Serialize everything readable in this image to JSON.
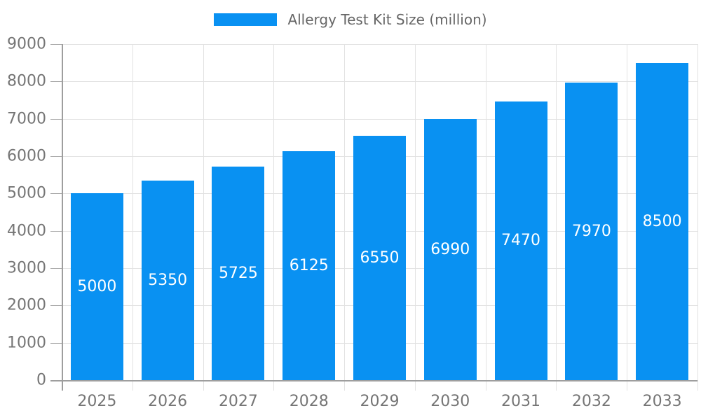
{
  "legend": {
    "label": "Allergy Test Kit Size (million)"
  },
  "chart_data": {
    "type": "bar",
    "title": "",
    "xlabel": "",
    "ylabel": "",
    "legend": "Allergy Test Kit Size (million)",
    "legend_position": "top",
    "categories": [
      "2025",
      "2026",
      "2027",
      "2028",
      "2029",
      "2030",
      "2031",
      "2032",
      "2033"
    ],
    "values": [
      5000,
      5350,
      5725,
      6125,
      6550,
      6990,
      7470,
      7970,
      8500
    ],
    "ylim": [
      0,
      9000
    ],
    "ytick_step": 1000,
    "yticks": [
      0,
      1000,
      2000,
      3000,
      4000,
      5000,
      6000,
      7000,
      8000,
      9000
    ],
    "grid": true,
    "bar_color": "#0991f2",
    "value_label_color": "#ffffff",
    "axis_text_color": "#757575",
    "grid_color": "#e2e2e2",
    "axis_line_color": "#9e9e9e"
  }
}
